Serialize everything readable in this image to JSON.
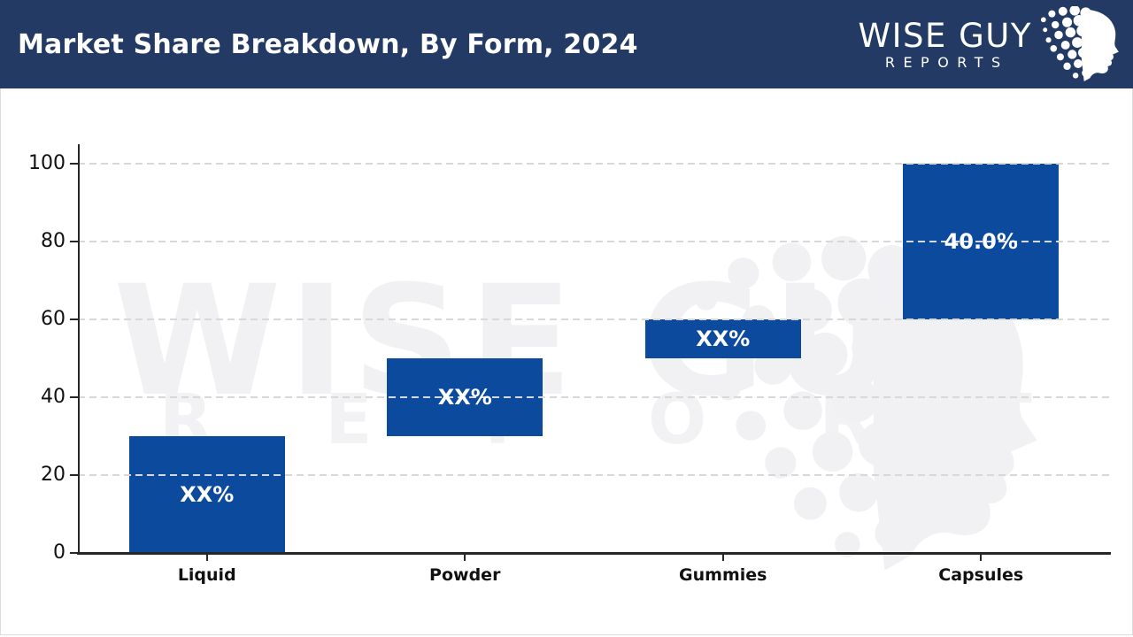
{
  "header": {
    "title": "Market Share Breakdown, By Form, 2024",
    "logo": {
      "line1": "WISE GUY",
      "line2": "REPORTS"
    }
  },
  "watermark": {
    "line1": "WISE GUY",
    "line2": "REPORTS"
  },
  "chart_data": {
    "type": "bar",
    "variant": "waterfall",
    "title": "Market Share Breakdown, By Form, 2024",
    "categories": [
      "Liquid",
      "Powder",
      "Gummies",
      "Capsules"
    ],
    "bars": [
      {
        "category": "Liquid",
        "start": 0,
        "end": 30,
        "label": "XX%"
      },
      {
        "category": "Powder",
        "start": 30,
        "end": 50,
        "label": "XX%"
      },
      {
        "category": "Gummies",
        "start": 50,
        "end": 60,
        "label": "XX%"
      },
      {
        "category": "Capsules",
        "start": 60,
        "end": 100,
        "label": "40.0%"
      }
    ],
    "ylim": [
      0,
      100
    ],
    "yticks": [
      0,
      20,
      40,
      60,
      80,
      100
    ],
    "xlabel": "",
    "ylabel": "",
    "legend": "none",
    "grid": "horizontal-dashed",
    "bar_color": "#0c4a9e",
    "label_color": "#ffffff"
  },
  "colors": {
    "header_bg": "#223a64",
    "bar_blue": "#0c4a9e",
    "gridline": "#d8d8d8",
    "axis": "#262626",
    "watermark": "#f1f1f3"
  }
}
